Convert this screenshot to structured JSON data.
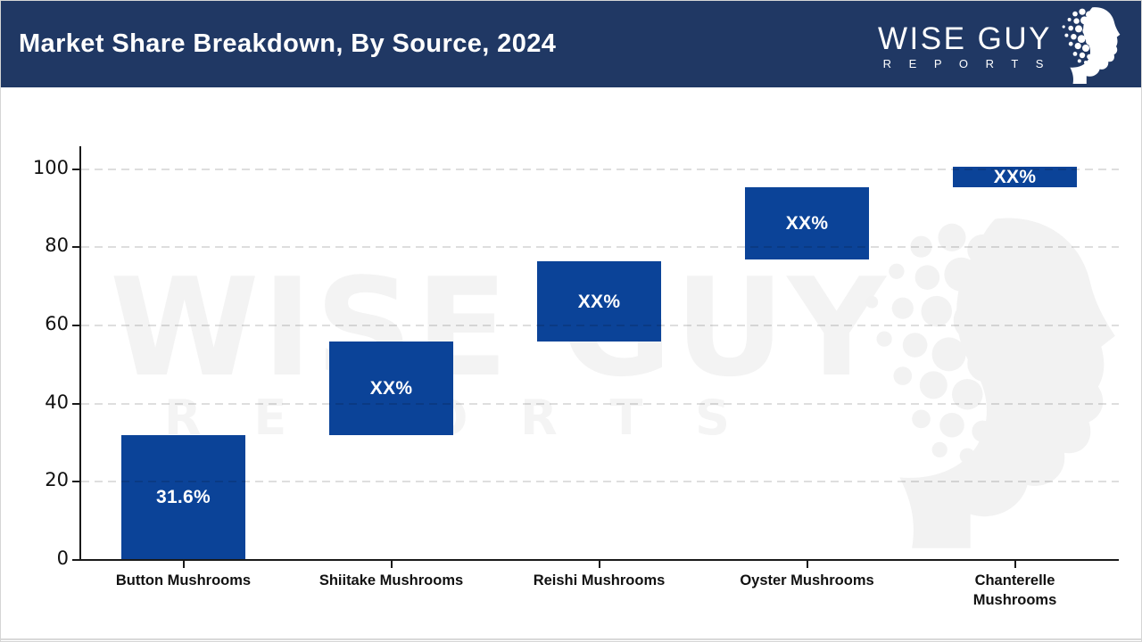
{
  "header": {
    "title": "Market Share Breakdown, By Source, 2024",
    "bg_color": "#203864",
    "logo": {
      "line1": "WISE GUY",
      "line2": "R E P O R T S"
    }
  },
  "watermark": {
    "line1": "WISE GUY",
    "line2": "R E P O R T S"
  },
  "chart_data": {
    "type": "bar",
    "subtype": "waterfall",
    "title": "Market Share Breakdown, By Source, 2024",
    "xlabel": "",
    "ylabel": "",
    "categories": [
      "Button Mushrooms",
      "Shiitake Mushrooms",
      "Reishi Mushrooms",
      "Oyster Mushrooms",
      "Chanterelle\nMushrooms"
    ],
    "segments": [
      {
        "category": "Button Mushrooms",
        "start": 0,
        "end": 31.6,
        "label": "31.6%"
      },
      {
        "category": "Shiitake Mushrooms",
        "start": 31.6,
        "end": 55.6,
        "label": "XX%"
      },
      {
        "category": "Reishi Mushrooms",
        "start": 55.6,
        "end": 76.2,
        "label": "XX%"
      },
      {
        "category": "Oyster Mushrooms",
        "start": 76.6,
        "end": 95.2,
        "label": "XX%"
      },
      {
        "category": "Chanterelle Mushrooms",
        "start": 95.2,
        "end": 100.4,
        "label": "XX%"
      }
    ],
    "y_ticks": [
      0,
      20,
      40,
      60,
      80,
      100
    ],
    "ylim": [
      0,
      105.6
    ],
    "bar_color": "#0b4398",
    "grid": "horizontal-dashed-over-bars",
    "legend_position": "none",
    "background_color": "#ffffff"
  }
}
